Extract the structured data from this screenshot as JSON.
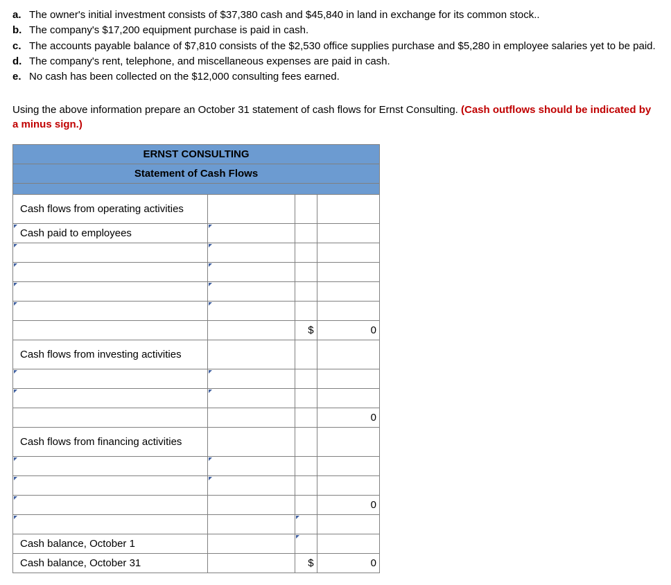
{
  "info_items": [
    {
      "letter": "a.",
      "text": "The owner's initial investment consists of $37,380 cash and $45,840 in land in exchange for its common stock.."
    },
    {
      "letter": "b.",
      "text": "The company's $17,200 equipment purchase is paid in cash."
    },
    {
      "letter": "c.",
      "text": "The accounts payable balance of $7,810 consists of the $2,530 office supplies purchase and $5,280 in employee salaries yet to be paid."
    },
    {
      "letter": "d.",
      "text": "The company's rent, telephone, and miscellaneous expenses are paid in cash."
    },
    {
      "letter": "e.",
      "text": "No cash has been collected on the $12,000 consulting fees earned."
    }
  ],
  "prompt_plain": "Using the above information prepare an October 31 statement of cash flows for Ernst Consulting. ",
  "prompt_red": "(Cash outflows should be indicated by a minus sign.)",
  "table": {
    "header1": "ERNST CONSULTING",
    "header2": "Statement of Cash Flows",
    "header_bg": "#6c9bd1",
    "border_color": "#808080",
    "marker_color": "#4060a0",
    "rows": [
      {
        "desc": "Cash flows from operating activities",
        "desc_tri": false,
        "amt1_tri": false,
        "sym": "",
        "amt2": "",
        "sym_tri": false,
        "section_head": true
      },
      {
        "desc": "Cash paid to employees",
        "desc_tri": true,
        "amt1_tri": true,
        "sym": "",
        "amt2": "",
        "sym_tri": false
      },
      {
        "desc": "",
        "desc_tri": true,
        "amt1_tri": true,
        "sym": "",
        "amt2": "",
        "sym_tri": false
      },
      {
        "desc": "",
        "desc_tri": true,
        "amt1_tri": true,
        "sym": "",
        "amt2": "",
        "sym_tri": false
      },
      {
        "desc": "",
        "desc_tri": true,
        "amt1_tri": true,
        "sym": "",
        "amt2": "",
        "sym_tri": false
      },
      {
        "desc": "",
        "desc_tri": true,
        "amt1_tri": true,
        "sym": "",
        "amt2": "",
        "sym_tri": false
      },
      {
        "desc": "",
        "desc_tri": false,
        "amt1_tri": false,
        "sym": "$",
        "amt2": "0",
        "sym_tri": false
      },
      {
        "desc": "Cash flows from investing activities",
        "desc_tri": false,
        "amt1_tri": false,
        "sym": "",
        "amt2": "",
        "sym_tri": false,
        "section_head": true
      },
      {
        "desc": "",
        "desc_tri": true,
        "amt1_tri": true,
        "sym": "",
        "amt2": "",
        "sym_tri": false
      },
      {
        "desc": "",
        "desc_tri": true,
        "amt1_tri": true,
        "sym": "",
        "amt2": "",
        "sym_tri": false
      },
      {
        "desc": "",
        "desc_tri": false,
        "amt1_tri": false,
        "sym": "",
        "amt2": "0",
        "sym_tri": false
      },
      {
        "desc": "Cash flows from financing activities",
        "desc_tri": false,
        "amt1_tri": false,
        "sym": "",
        "amt2": "",
        "sym_tri": false,
        "section_head": true
      },
      {
        "desc": "",
        "desc_tri": true,
        "amt1_tri": true,
        "sym": "",
        "amt2": "",
        "sym_tri": false
      },
      {
        "desc": "",
        "desc_tri": true,
        "amt1_tri": true,
        "sym": "",
        "amt2": "",
        "sym_tri": false
      },
      {
        "desc": "",
        "desc_tri": true,
        "amt1_tri": false,
        "sym": "",
        "amt2": "0",
        "sym_tri": false
      },
      {
        "desc": "",
        "desc_tri": true,
        "amt1_tri": false,
        "sym": "",
        "amt2": "",
        "sym_tri": true
      },
      {
        "desc": "Cash balance, October 1",
        "desc_tri": false,
        "amt1_tri": false,
        "sym": "",
        "amt2": "",
        "sym_tri": true
      },
      {
        "desc": "Cash balance, October 31",
        "desc_tri": false,
        "amt1_tri": false,
        "sym": "$",
        "amt2": "0",
        "sym_tri": false
      }
    ]
  }
}
